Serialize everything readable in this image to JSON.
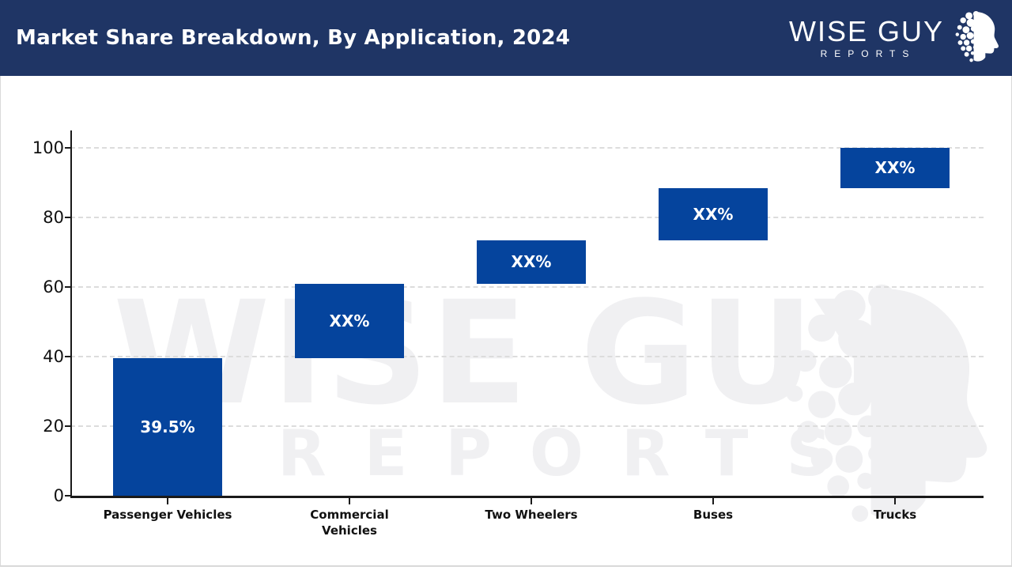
{
  "header": {
    "title": "Market Share Breakdown, By Application, 2024",
    "logo": {
      "line1": "WISE GUY",
      "line2": "REPORTS"
    }
  },
  "watermark": {
    "line1": "WISE GUY",
    "line2": "REPORTS"
  },
  "colors": {
    "header_bg": "#1f3565",
    "bar": "#05449d",
    "grid": "#dcdcdc",
    "axis": "#1a1a1a",
    "bar_label": "#ffffff",
    "watermark": "#f0f0f2"
  },
  "chart_data": {
    "type": "bar",
    "subtype": "waterfall",
    "title": "Market Share Breakdown, By Application, 2024",
    "xlabel": "",
    "ylabel": "",
    "categories": [
      "Passenger Vehicles",
      "Commercial\nVehicles",
      "Two Wheelers",
      "Buses",
      "Trucks"
    ],
    "segments": [
      {
        "category": "Passenger Vehicles",
        "start": 0,
        "end": 39.5,
        "label": "39.5%"
      },
      {
        "category": "Commercial\nVehicles",
        "start": 39.5,
        "end": 61,
        "label": "XX%"
      },
      {
        "category": "Two Wheelers",
        "start": 61,
        "end": 73.5,
        "label": "XX%"
      },
      {
        "category": "Buses",
        "start": 73.5,
        "end": 88.5,
        "label": "XX%"
      },
      {
        "category": "Trucks",
        "start": 88.5,
        "end": 100,
        "label": "XX%"
      }
    ],
    "y_ticks": [
      0,
      20,
      40,
      60,
      80,
      100
    ],
    "ylim": [
      0,
      105
    ],
    "grid": "horizontal-dashed",
    "legend": "none"
  }
}
